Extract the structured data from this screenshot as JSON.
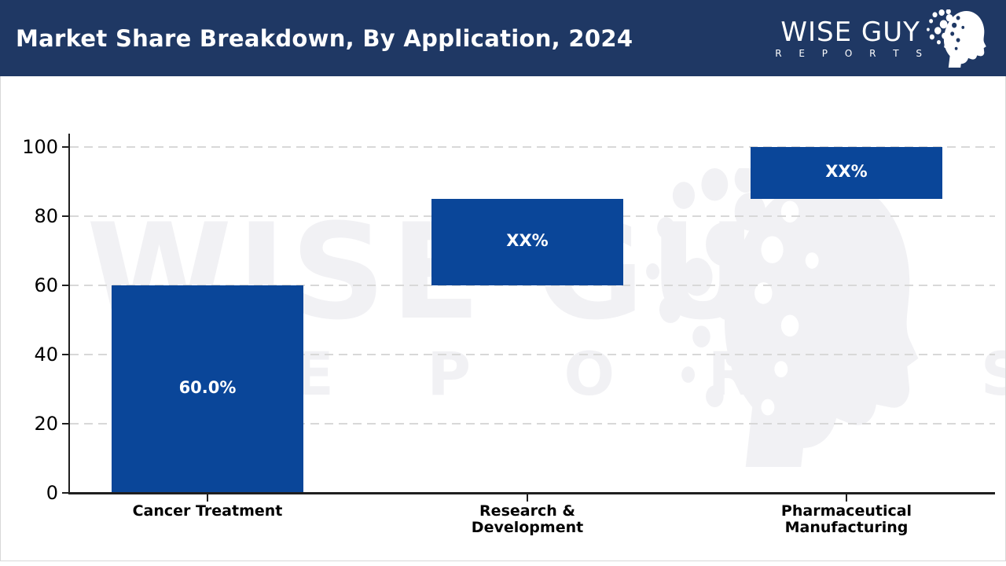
{
  "header": {
    "title": "Market Share Breakdown, By Application, 2024",
    "logo": {
      "brand": "WISE GUY",
      "sub": "R E P O R T S"
    }
  },
  "watermark": {
    "line1": "WISE GUY",
    "line2": "R E P O R T S"
  },
  "chart_data": {
    "type": "bar",
    "variant": "waterfall",
    "title": "Market Share Breakdown, By Application, 2024",
    "categories": [
      "Cancer Treatment",
      "Research &\nDevelopment",
      "Pharmaceutical\nManufacturing"
    ],
    "segments": [
      {
        "category": "Cancer Treatment",
        "start": 0,
        "end": 60,
        "label": "60.0%"
      },
      {
        "category": "Research & Development",
        "start": 60,
        "end": 85,
        "label": "XX%"
      },
      {
        "category": "Pharmaceutical Manufacturing",
        "start": 85,
        "end": 100,
        "label": "XX%"
      }
    ],
    "values_pct": [
      60,
      25,
      15
    ],
    "yticks": [
      0,
      20,
      40,
      60,
      80,
      100
    ],
    "ylim": [
      0,
      104
    ],
    "grid": "horizontal-dashed",
    "legend": "none",
    "bar_color": "#0a4699",
    "bar_label_color": "#ffffff"
  },
  "colors": {
    "header_bg": "#1f3864",
    "bar": "#0a4699",
    "grid": "#d8d8d8",
    "axis": "#1f1f1f",
    "watermark": "#f1f1f4",
    "text": "#000000"
  }
}
